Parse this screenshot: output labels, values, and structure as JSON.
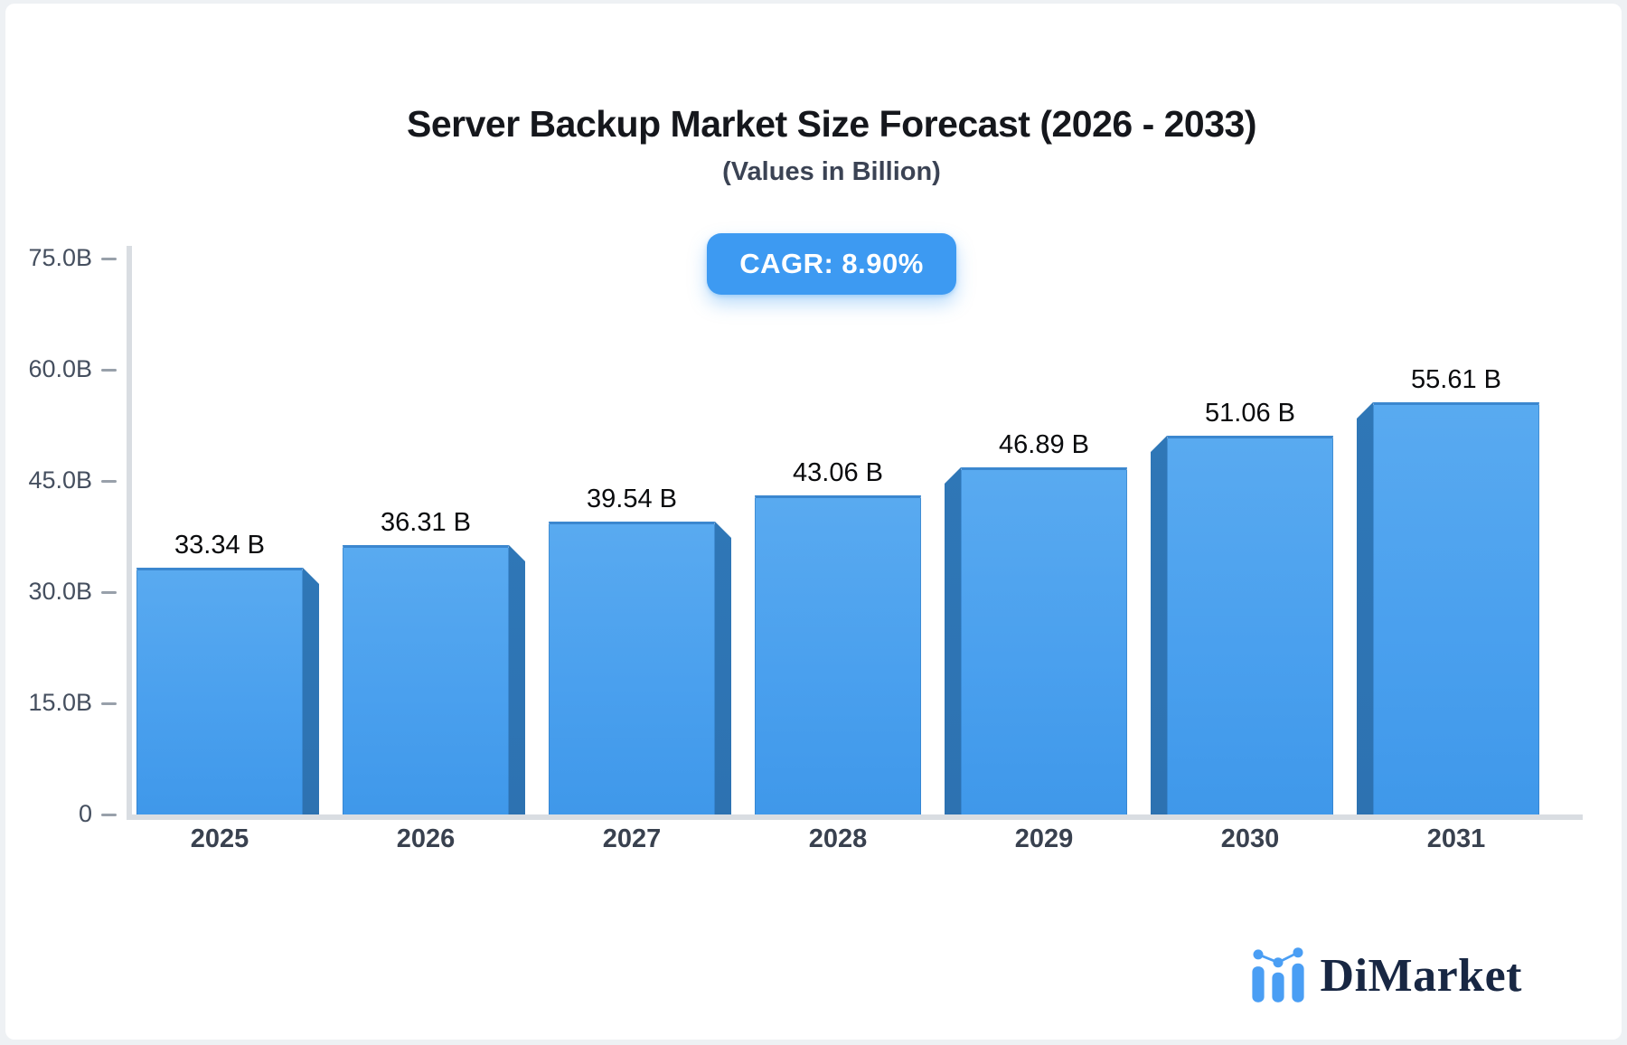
{
  "header": {
    "title": "Server Backup Market Size Forecast (2026 - 2033)",
    "subtitle": "(Values in Billion)",
    "cagr_badge": "CAGR: 8.90%"
  },
  "chart_data": {
    "type": "bar",
    "title": "Server Backup Market Size Forecast (2026 - 2033)",
    "subtitle": "(Values in Billion)",
    "categories": [
      "2025",
      "2026",
      "2027",
      "2028",
      "2029",
      "2030",
      "2031"
    ],
    "values": [
      33.34,
      36.31,
      39.54,
      43.06,
      46.89,
      51.06,
      55.61
    ],
    "bar_labels": [
      "33.34 B",
      "36.31 B",
      "39.54 B",
      "43.06 B",
      "46.89 B",
      "51.06 B",
      "55.61 B"
    ],
    "xlabel": "",
    "ylabel": "",
    "ylim": [
      0,
      75
    ],
    "ytick_values": [
      75,
      60,
      45,
      30,
      15,
      0
    ],
    "ytick_labels": [
      "75.0B",
      "60.0B",
      "45.0B",
      "30.0B",
      "15.0B",
      "0"
    ],
    "grid": false,
    "legend_position": "none",
    "annotation": "CAGR: 8.90%",
    "style": "3d-beveled-bars, side faces angled toward center bar",
    "colors": {
      "bar_front_top": "#59aaf0",
      "bar_front_bottom": "#3f98ea",
      "bar_side": "#2e75b4",
      "axis_line": "#d9dde2",
      "tick": "#98a0aa",
      "badge_bg": "#3d9af2",
      "badge_text": "#ffffff"
    }
  },
  "footer": {
    "brand": "DiMarket",
    "logo_icon": "bar-line-chart-icon",
    "brand_color": "#182743",
    "logo_blue": "#4a9ef4"
  }
}
